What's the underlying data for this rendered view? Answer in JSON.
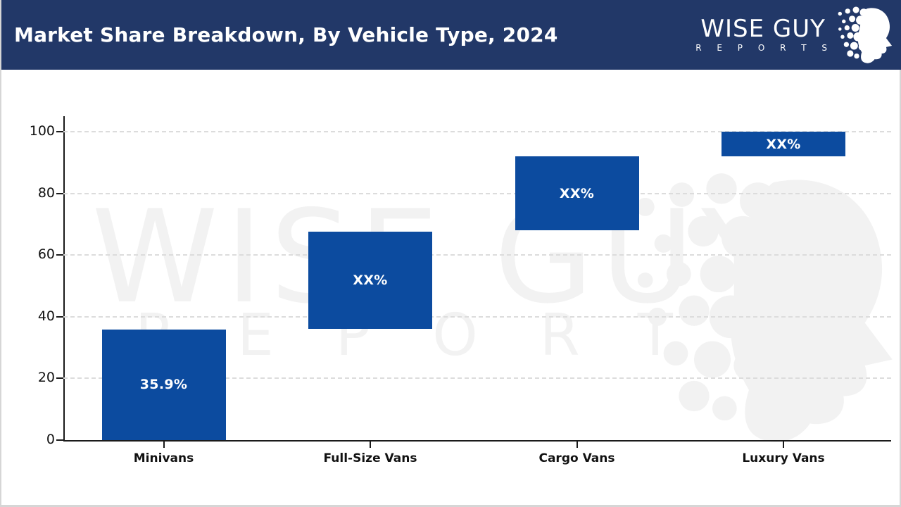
{
  "header": {
    "title": "Market Share Breakdown, By Vehicle Type, 2024",
    "logo": {
      "line1": "WISE GUY",
      "line2": "R E P O R T S"
    }
  },
  "watermark": {
    "line1": "WISE GUY",
    "line2": "REPORTS"
  },
  "colors": {
    "header_bg": "#223868",
    "bar": "#0c4b9f",
    "grid": "#dcdcdc",
    "axis": "#1a1a1a",
    "watermark": "#f2f2f2",
    "bar_label": "#ffffff",
    "border_hairline": "#d6d6d6"
  },
  "chart_data": {
    "type": "bar",
    "subtype": "floating-waterfall",
    "title": "Market Share Breakdown, By Vehicle Type, 2024",
    "categories": [
      "Minivans",
      "Full-Size Vans",
      "Cargo Vans",
      "Luxury Vans"
    ],
    "segments": [
      {
        "category": "Minivans",
        "start": 0,
        "end": 35.9,
        "label": "35.9%"
      },
      {
        "category": "Full-Size Vans",
        "start": 36.1,
        "end": 67.6,
        "label": "XX%"
      },
      {
        "category": "Cargo Vans",
        "start": 68.0,
        "end": 92.0,
        "label": "XX%"
      },
      {
        "category": "Luxury Vans",
        "start": 92.0,
        "end": 100.0,
        "label": "XX%"
      }
    ],
    "yticks": [
      0,
      20,
      40,
      60,
      80,
      100
    ],
    "ylim": [
      0,
      105
    ],
    "xlabel": "",
    "ylabel": "",
    "grid": true,
    "grid_style": "dashed",
    "legend": false,
    "bar_color": "#0c4b9f"
  }
}
